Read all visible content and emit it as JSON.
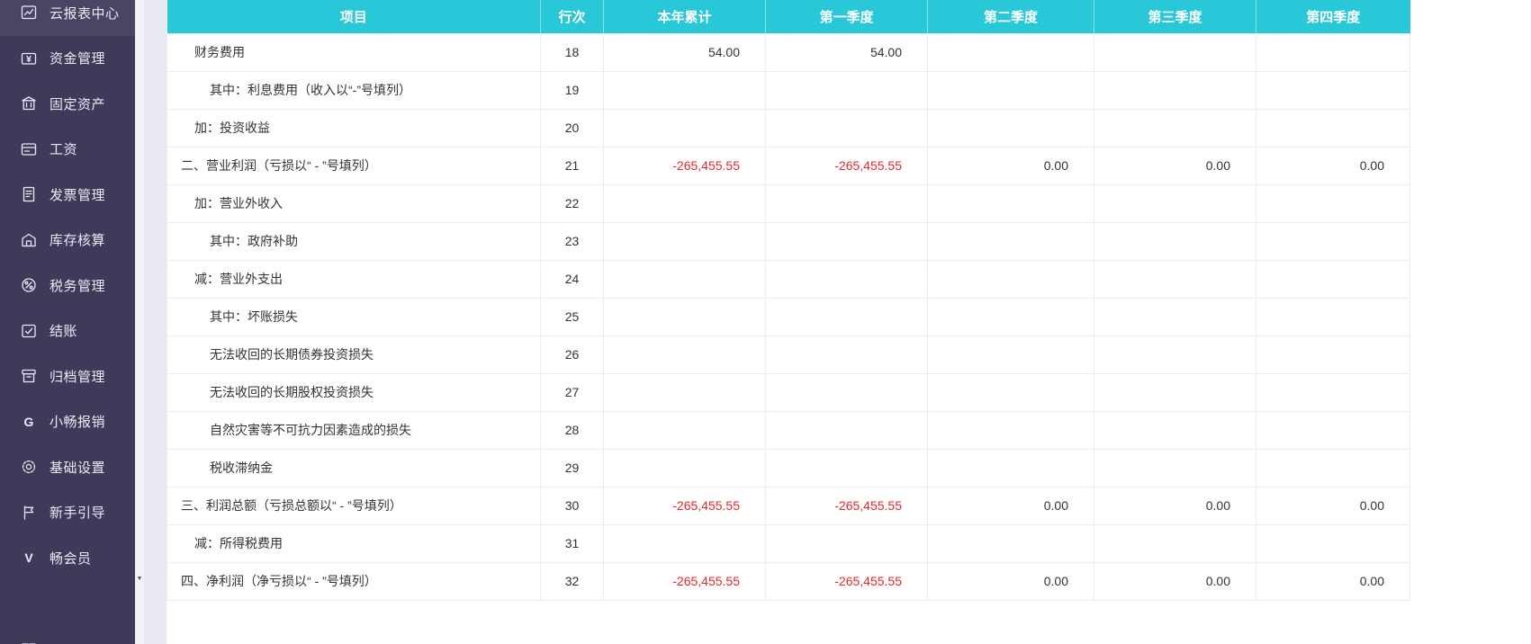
{
  "colors": {
    "header_bg": "#29c8d8",
    "sidebar_bg": "#3e3a5a",
    "negative_amount": "#e8262d",
    "table_border": "#ececec",
    "gutter_bg": "#e9eaf1"
  },
  "sidebar": {
    "items": [
      {
        "id": "cloud-report",
        "icon": "report-icon",
        "label": "云报表中心"
      },
      {
        "id": "funds",
        "icon": "funds-icon",
        "label": "资金管理"
      },
      {
        "id": "fixed-assets",
        "icon": "building-icon",
        "label": "固定资产"
      },
      {
        "id": "salary",
        "icon": "salary-card-icon",
        "label": "工资"
      },
      {
        "id": "invoice",
        "icon": "invoice-icon",
        "label": "发票管理"
      },
      {
        "id": "inventory",
        "icon": "warehouse-icon",
        "label": "库存核算"
      },
      {
        "id": "tax",
        "icon": "percent-icon",
        "label": "税务管理"
      },
      {
        "id": "closing",
        "icon": "check-book-icon",
        "label": "结账"
      },
      {
        "id": "archive",
        "icon": "archive-box-icon",
        "label": "归档管理"
      },
      {
        "id": "reimburse",
        "icon": "letter-g-icon",
        "label": "小畅报销"
      },
      {
        "id": "settings",
        "icon": "gear-icon",
        "label": "基础设置"
      },
      {
        "id": "guide",
        "icon": "flag-icon",
        "label": "新手引导"
      },
      {
        "id": "member",
        "icon": "letter-v-icon",
        "label": "畅会员"
      }
    ],
    "bottom_partial_item": {
      "id": "bottom-partial",
      "icon": "grid-icon",
      "label": ""
    }
  },
  "table": {
    "columns": [
      "项目",
      "行次",
      "本年累计",
      "第一季度",
      "第二季度",
      "第三季度",
      "第四季度"
    ],
    "rows": [
      {
        "item": "财务费用",
        "indent": 1,
        "line": "18",
        "values": [
          "54.00",
          "54.00",
          "",
          "",
          ""
        ]
      },
      {
        "item": "其中：利息费用（收入以“-”号填列）",
        "indent": 2,
        "line": "19",
        "values": [
          "",
          "",
          "",
          "",
          ""
        ]
      },
      {
        "item": "加：投资收益",
        "indent": 1,
        "line": "20",
        "values": [
          "",
          "",
          "",
          "",
          ""
        ]
      },
      {
        "item": "二、营业利润（亏损以“ - ”号填列）",
        "indent": 0,
        "line": "21",
        "values": [
          "-265,455.55",
          "-265,455.55",
          "0.00",
          "0.00",
          "0.00"
        ]
      },
      {
        "item": "加：营业外收入",
        "indent": 1,
        "line": "22",
        "values": [
          "",
          "",
          "",
          "",
          ""
        ]
      },
      {
        "item": "其中：政府补助",
        "indent": 2,
        "line": "23",
        "values": [
          "",
          "",
          "",
          "",
          ""
        ]
      },
      {
        "item": "减：营业外支出",
        "indent": 1,
        "line": "24",
        "values": [
          "",
          "",
          "",
          "",
          ""
        ]
      },
      {
        "item": "其中：坏账损失",
        "indent": 2,
        "line": "25",
        "values": [
          "",
          "",
          "",
          "",
          ""
        ]
      },
      {
        "item": "无法收回的长期债券投资损失",
        "indent": 2,
        "line": "26",
        "values": [
          "",
          "",
          "",
          "",
          ""
        ]
      },
      {
        "item": "无法收回的长期股权投资损失",
        "indent": 2,
        "line": "27",
        "values": [
          "",
          "",
          "",
          "",
          ""
        ]
      },
      {
        "item": "自然灾害等不可抗力因素造成的损失",
        "indent": 2,
        "line": "28",
        "values": [
          "",
          "",
          "",
          "",
          ""
        ]
      },
      {
        "item": "税收滞纳金",
        "indent": 2,
        "line": "29",
        "values": [
          "",
          "",
          "",
          "",
          ""
        ]
      },
      {
        "item": "三、利润总额（亏损总额以“ - ”号填列）",
        "indent": 0,
        "line": "30",
        "values": [
          "-265,455.55",
          "-265,455.55",
          "0.00",
          "0.00",
          "0.00"
        ]
      },
      {
        "item": "减：所得税费用",
        "indent": 1,
        "line": "31",
        "values": [
          "",
          "",
          "",
          "",
          ""
        ]
      },
      {
        "item": "四、净利润（净亏损以“ - ”号填列）",
        "indent": 0,
        "line": "32",
        "values": [
          "-265,455.55",
          "-265,455.55",
          "0.00",
          "0.00",
          "0.00"
        ]
      }
    ]
  },
  "scrollbar": {
    "down_arrow": "▼"
  }
}
